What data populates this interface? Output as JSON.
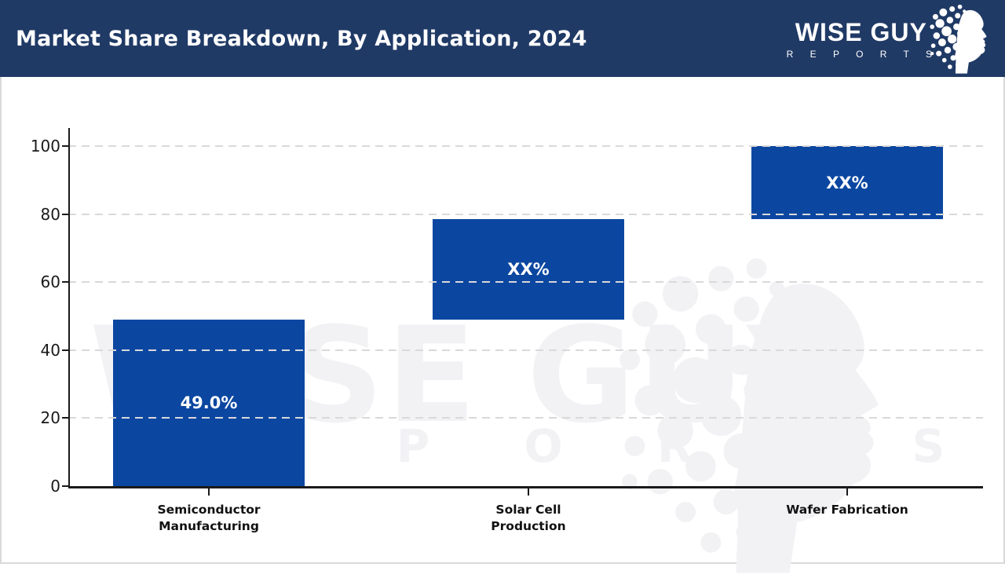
{
  "header": {
    "title": "Market Share Breakdown, By Application, 2024",
    "logo": {
      "line1": "WISE GUY",
      "line2": "R E P O R T S",
      "face_icon": "dotted-head-profile"
    }
  },
  "watermark": {
    "line1": "WISE GUY",
    "line2": "REPORTS",
    "face_icon": "dotted-head-profile"
  },
  "colors": {
    "header_bg": "#203a66",
    "bar": "#0b47a1",
    "grid": "#d9d9d9",
    "axis": "#1a1a1a",
    "watermark": "#f2f2f5",
    "value_label": "#ffffff"
  },
  "chart_data": {
    "type": "bar",
    "subtype": "waterfall",
    "title": "Market Share Breakdown, By Application, 2024",
    "xlabel": "",
    "ylabel": "",
    "ylim": [
      0,
      105
    ],
    "yticks": [
      0,
      20,
      40,
      60,
      80,
      100
    ],
    "grid": "dashed-horizontal",
    "legend": "none",
    "categories": [
      "Semiconductor\nManufacturing",
      "Solar Cell\nProduction",
      "Wafer Fabrication"
    ],
    "segments": [
      {
        "category": "Semiconductor Manufacturing",
        "start": 0,
        "end": 49,
        "value_label": "49.0%"
      },
      {
        "category": "Solar Cell Production",
        "start": 49,
        "end": 78.5,
        "value_label": "XX%"
      },
      {
        "category": "Wafer Fabrication",
        "start": 78.5,
        "end": 100,
        "value_label": "XX%"
      }
    ]
  }
}
